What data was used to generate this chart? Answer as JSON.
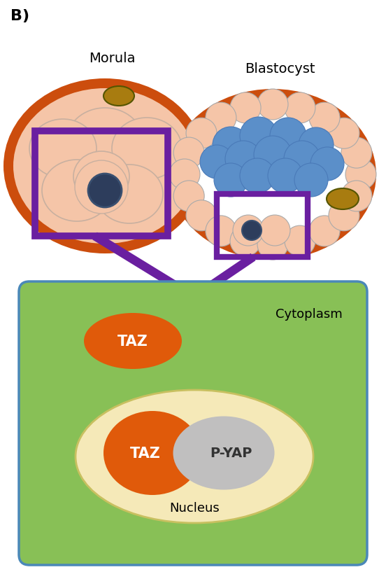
{
  "bg_color": "#ffffff",
  "orange_border": "#cc4d0d",
  "salmon_fill": "#f5c5a8",
  "light_salmon": "#f5c5a8",
  "white_blasto": "#ffffff",
  "blue_icm": "#5b8fc9",
  "blue_icm_edge": "#4a7ab8",
  "dark_navy": "#2d3d5c",
  "dark_navy_edge": "#3a5070",
  "gold": "#a87c10",
  "gold_edge": "#555500",
  "purple_box": "#6a1fa0",
  "gray_cell": "#c8c8c8",
  "gray_cell_edge": "#aaaaaa",
  "green_cell_bg": "#88c056",
  "nucleus_fill": "#f5e9b8",
  "nucleus_edge": "#c8c060",
  "taz_orange": "#e05a0a",
  "pyap_gray": "#c0bfbf",
  "cell_border_blue": "#4a88b8",
  "label_color": "#000000",
  "B_label": "B)",
  "morula_label": "Morula",
  "blastocyst_label": "Blastocyst",
  "cytoplasm_label": "Cytoplasm",
  "nucleus_label": "Nucleus",
  "taz_label": "TAZ",
  "taz2_label": "TAZ",
  "pyap_label": "P-YAP"
}
